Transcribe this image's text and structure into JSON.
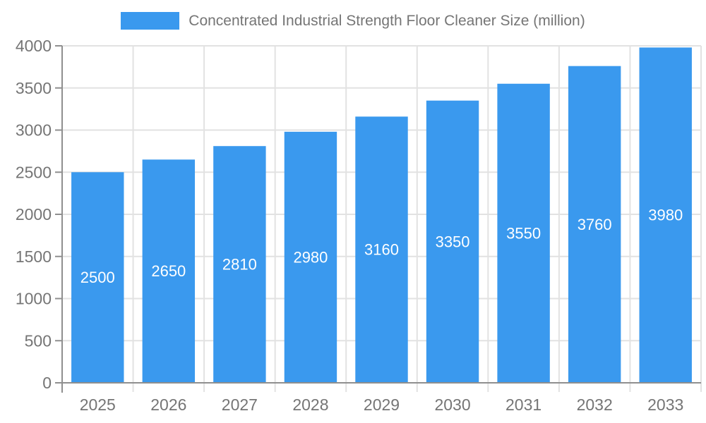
{
  "chart_data": {
    "type": "bar",
    "title": "",
    "legend_position": "top",
    "categories": [
      "2025",
      "2026",
      "2027",
      "2028",
      "2029",
      "2030",
      "2031",
      "2032",
      "2033"
    ],
    "series": [
      {
        "name": "Concentrated Industrial Strength Floor Cleaner Size (million)",
        "values": [
          2500,
          2650,
          2810,
          2980,
          3160,
          3350,
          3550,
          3760,
          3980
        ]
      }
    ],
    "xlabel": "",
    "ylabel": "",
    "ylim": [
      0,
      4000
    ],
    "ytick_step": 500,
    "yticks": [
      0,
      500,
      1000,
      1500,
      2000,
      2500,
      3000,
      3500,
      4000
    ],
    "grid": "horizontal and vertical light gridlines",
    "value_labels": {
      "position": "inside-center",
      "color": "#FFFFFF"
    },
    "colors": {
      "bar": "#3A99EE",
      "grid_line": "#E2E2E2",
      "axis_line": "#8F8F8F",
      "tick_label": "#757575",
      "legend_text": "#757575",
      "value_label": "#FFFFFF",
      "background": "#FFFFFF"
    }
  }
}
